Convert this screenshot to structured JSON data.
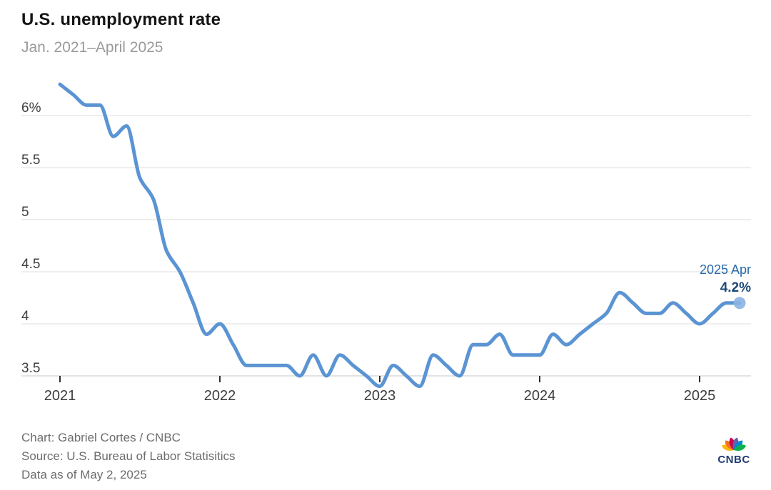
{
  "header": {
    "title": "U.S. unemployment rate",
    "subtitle": "Jan. 2021–April 2025"
  },
  "chart_data": {
    "type": "line",
    "title": "U.S. unemployment rate",
    "subtitle": "Jan. 2021–April 2025",
    "series_name": "U.S. unemployment rate",
    "unit": "%",
    "frequency": "monthly",
    "start": "Jan 2021",
    "end": "Apr 2025",
    "values": [
      6.3,
      6.2,
      6.1,
      6.1,
      5.8,
      5.9,
      5.4,
      5.2,
      4.7,
      4.5,
      4.2,
      3.9,
      4.0,
      3.8,
      3.6,
      3.6,
      3.6,
      3.6,
      3.5,
      3.7,
      3.5,
      3.7,
      3.6,
      3.5,
      3.4,
      3.6,
      3.5,
      3.4,
      3.7,
      3.6,
      3.5,
      3.8,
      3.8,
      3.9,
      3.7,
      3.7,
      3.7,
      3.9,
      3.8,
      3.9,
      4.0,
      4.1,
      4.3,
      4.2,
      4.1,
      4.1,
      4.2,
      4.1,
      4.0,
      4.1,
      4.2,
      4.2
    ],
    "x_tick_labels": [
      "2021",
      "2022",
      "2023",
      "2024",
      "2025"
    ],
    "x_tick_month_indices": [
      0,
      12,
      24,
      36,
      48
    ],
    "y_tick_labels": [
      "6%",
      "5.5",
      "5",
      "4.5",
      "4",
      "3.5"
    ],
    "y_tick_values": [
      6,
      5.5,
      5,
      4.5,
      4,
      3.5
    ],
    "ylim": [
      3.3,
      6.45
    ],
    "grid": "horizontal",
    "legend": "none",
    "annotation": {
      "label": "2025 Apr",
      "value": "4.2%"
    },
    "colors": {
      "line": "#5b94d3",
      "end_dot": "#8ab2e3",
      "annotation_label": "#2a6aa9",
      "annotation_value": "#1d4876",
      "gridline": "#dcdcdc",
      "axis_line": "#c4c4c4",
      "tick_mark": "#2f2f2f",
      "axis_text": "#3d3d3d"
    }
  },
  "footer": {
    "credit": "Chart: Gabriel Cortes / CNBC",
    "source": "Source: U.S. Bureau of Labor Statisitics",
    "as_of": "Data as of May 2, 2025"
  },
  "logo": {
    "wordmark": "CNBC",
    "peacock_colors": [
      "#FCB711",
      "#F37021",
      "#CC004C",
      "#6460AA",
      "#0089D0",
      "#0DB14B"
    ]
  }
}
